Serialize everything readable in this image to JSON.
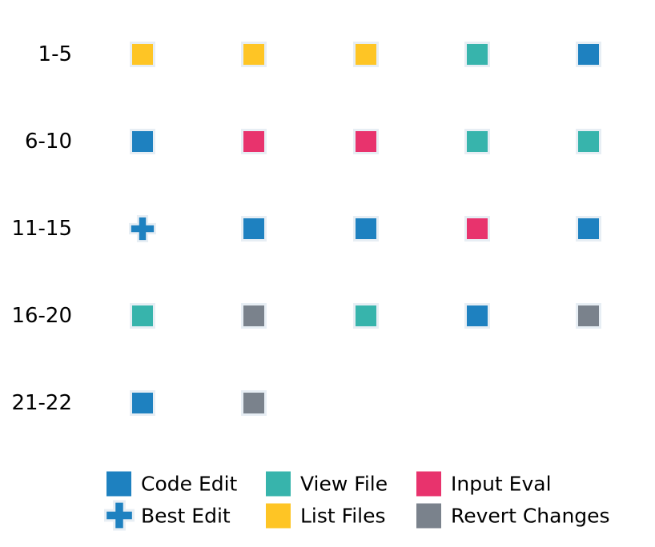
{
  "chart_data": {
    "type": "heatmap",
    "title": "",
    "xlabel": "",
    "ylabel": "",
    "description": "Categorical grid of agent action types per step range; one marker per step slot, read left to right",
    "row_labels": [
      "1-5",
      "6-10",
      "11-15",
      "16-20",
      "21-22"
    ],
    "rows": [
      [
        "List Files",
        "List Files",
        "List Files",
        "View File",
        "Code Edit"
      ],
      [
        "Code Edit",
        "Input Eval",
        "Input Eval",
        "View File",
        "View File"
      ],
      [
        "Best Edit",
        "Code Edit",
        "Code Edit",
        "Input Eval",
        "Code Edit"
      ],
      [
        "View File",
        "Revert Changes",
        "View File",
        "Code Edit",
        "Revert Changes"
      ],
      [
        "Code Edit",
        "Revert Changes"
      ]
    ],
    "legend": {
      "position": "bottom",
      "rows": [
        [
          "Code Edit",
          "View File",
          "Input Eval"
        ],
        [
          "Best Edit",
          "List Files",
          "Revert Changes"
        ]
      ],
      "entries": {
        "Code Edit": {
          "label": "Code Edit",
          "marker": "square",
          "color": "#1e81c0"
        },
        "View File": {
          "label": "View File",
          "marker": "square",
          "color": "#37b4ac"
        },
        "Input Eval": {
          "label": "Input Eval",
          "marker": "square",
          "color": "#e8336d"
        },
        "Best Edit": {
          "label": "Best Edit",
          "marker": "plus",
          "color": "#1e81c0"
        },
        "List Files": {
          "label": "List Files",
          "marker": "square",
          "color": "#fec525"
        },
        "Revert Changes": {
          "label": "Revert Changes",
          "marker": "square",
          "color": "#7a828c"
        }
      }
    },
    "colors": {
      "marker_halo": "#e7eef4",
      "text": "#000000",
      "background": "#ffffff"
    },
    "grid": false
  }
}
